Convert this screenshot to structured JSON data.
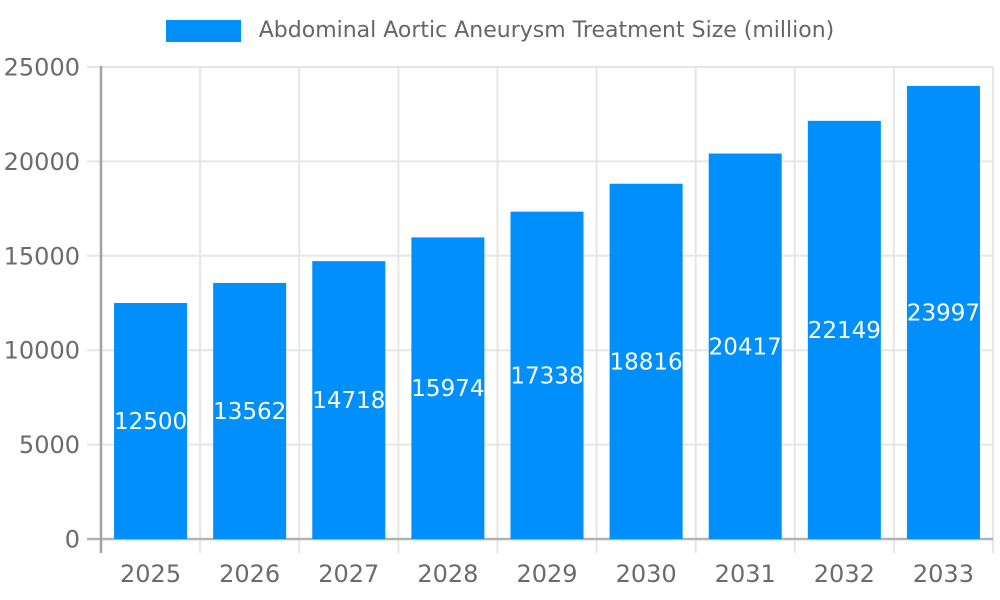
{
  "chart_data": {
    "type": "bar",
    "title": "Abdominal Aortic Aneurysm Treatment Size (million)",
    "categories": [
      "2025",
      "2026",
      "2027",
      "2028",
      "2029",
      "2030",
      "2031",
      "2032",
      "2033"
    ],
    "values": [
      12500,
      13562,
      14718,
      15974,
      17338,
      18816,
      20417,
      22149,
      23997
    ],
    "xlabel": "",
    "ylabel": "",
    "ylim": [
      0,
      25000
    ],
    "yticks": [
      0,
      5000,
      10000,
      15000,
      20000,
      25000
    ],
    "grid": true,
    "legend_position": "top",
    "data_labels_inside_bars": true,
    "colors": {
      "bar": "#008FFB",
      "data_label": "#ffffff",
      "axis_label": "#6b6b6b",
      "legend_text": "#666666",
      "gridline": "#e6e6e6",
      "axis_line": "#a3a3a3",
      "baseline": "#b3b3b3",
      "background": "#ffffff"
    }
  }
}
